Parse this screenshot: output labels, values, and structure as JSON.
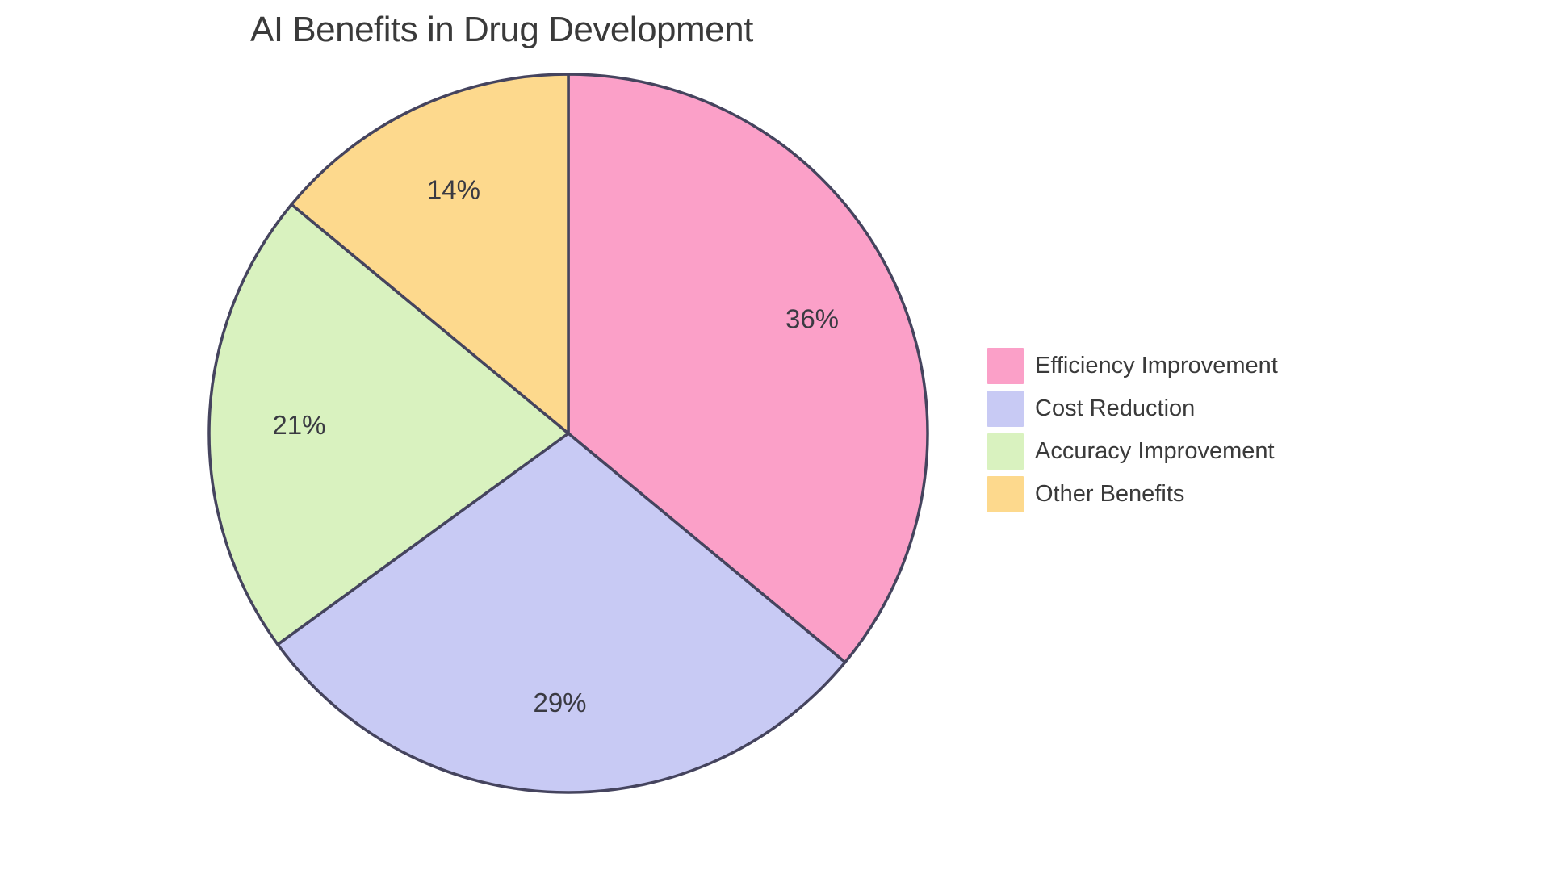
{
  "title": "AI Benefits in Drug Development",
  "chart_data": {
    "type": "pie",
    "title": "AI Benefits in Drug Development",
    "categories": [
      "Efficiency Improvement",
      "Cost Reduction",
      "Accuracy Improvement",
      "Other Benefits"
    ],
    "values": [
      36,
      29,
      21,
      14
    ],
    "slice_labels": [
      "36%",
      "29%",
      "21%",
      "14%"
    ],
    "colors": [
      "#FBA0C8",
      "#C8CAF4",
      "#D9F2BF",
      "#FDD98D"
    ],
    "start_angle_deg": 0,
    "direction": "clockwise",
    "label_position": "inside",
    "legend_position": "right",
    "slice_outline_color": "#45445E",
    "slice_outline_width": 3.5
  },
  "legend": {
    "items": [
      {
        "label": "Efficiency Improvement",
        "color": "#FBA0C8"
      },
      {
        "label": "Cost Reduction",
        "color": "#C8CAF4"
      },
      {
        "label": "Accuracy Improvement",
        "color": "#D9F2BF"
      },
      {
        "label": "Other Benefits",
        "color": "#FDD98D"
      }
    ]
  },
  "styles": {
    "background": "#FFFFFF",
    "title_color": "#3A3A3A",
    "slice_label_color": "#3A3A42",
    "legend_text_color": "#3A3A3A"
  }
}
